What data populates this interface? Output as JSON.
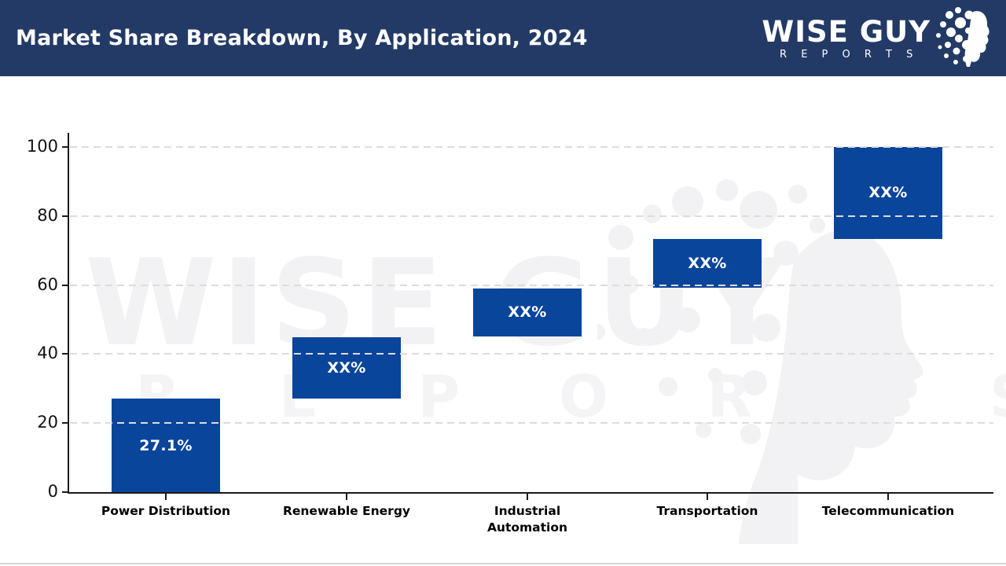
{
  "header": {
    "title": "Market Share Breakdown, By Application, 2024",
    "bg_color": "#233a66",
    "brand": {
      "line1": "WISE GUY",
      "line2": "R E P O R T S"
    }
  },
  "watermark": {
    "line1": "WISE GUY",
    "line2": "R E P O R T S"
  },
  "chart_data": {
    "type": "bar",
    "subtype": "waterfall",
    "title": "Market Share Breakdown, By Application, 2024",
    "xlabel": "",
    "ylabel": "",
    "ylim": [
      0,
      100
    ],
    "yticks": [
      0,
      20,
      40,
      60,
      80,
      100
    ],
    "grid": "horizontal-dashed",
    "bar_color": "#0a459c",
    "bar_label_color": "#ffffff",
    "categories": [
      "Power Distribution",
      "Renewable Energy",
      "Industrial\nAutomation",
      "Transportation",
      "Telecommunication"
    ],
    "segments": [
      {
        "category": "Power Distribution",
        "base": 0,
        "top": 27.1,
        "label": "27.1%"
      },
      {
        "category": "Renewable Energy",
        "base": 27.1,
        "top": 44.9,
        "label": "XX%"
      },
      {
        "category": "Industrial Automation",
        "base": 45.2,
        "top": 59.0,
        "label": "XX%"
      },
      {
        "category": "Transportation",
        "base": 59.2,
        "top": 73.4,
        "label": "XX%"
      },
      {
        "category": "Telecommunication",
        "base": 73.4,
        "top": 100,
        "label": "XX%"
      }
    ]
  }
}
